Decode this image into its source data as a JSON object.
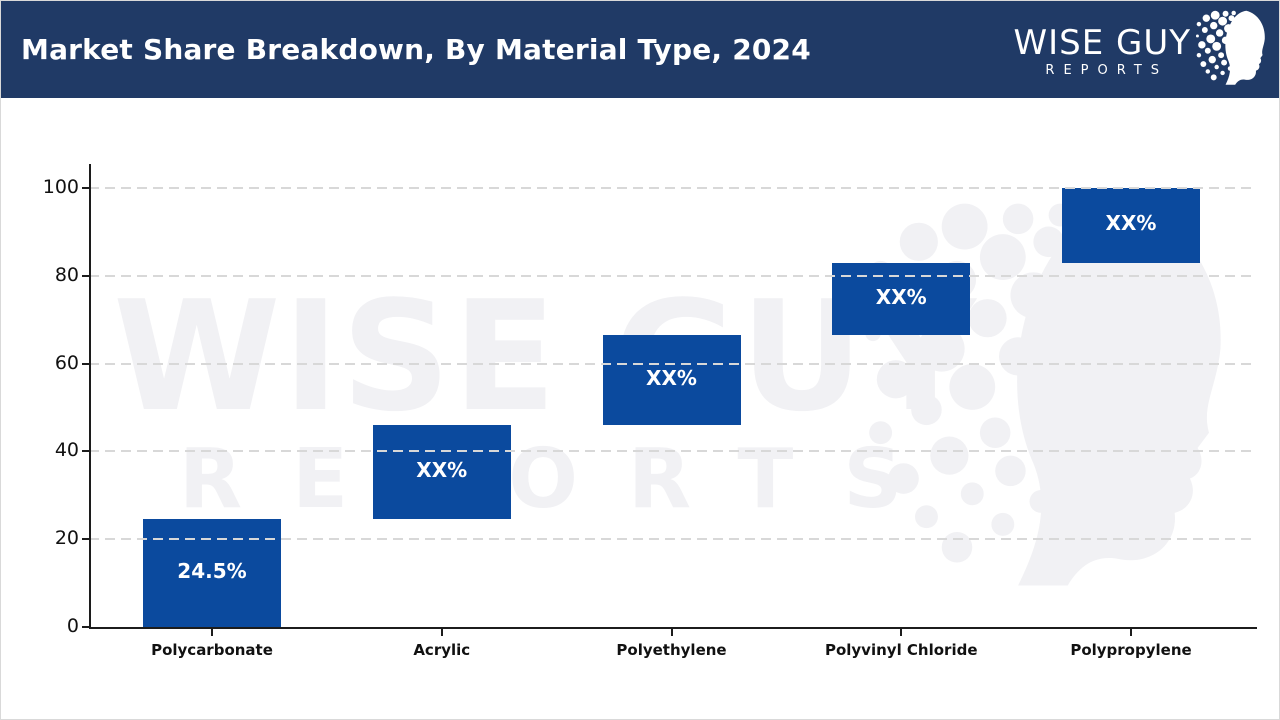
{
  "header": {
    "title": "Market Share Breakdown, By Material Type, 2024",
    "logo": {
      "line1": "WISE GUY",
      "line2": "REPORTS",
      "icon": "dotted-face-profile"
    }
  },
  "watermark": {
    "line1": "WISE GUY",
    "line2": "REPORTS",
    "icon": "dotted-face-profile"
  },
  "colors": {
    "header_bg": "#203a66",
    "bar": "#0b4a9e",
    "bar_label": "#ffffff",
    "gridline": "#d8d8d8",
    "axis": "#1c1c1c",
    "watermark": "#f1f1f4"
  },
  "chart_data": {
    "type": "bar",
    "variant": "waterfall",
    "title": "Market Share Breakdown, By Material Type, 2024",
    "categories": [
      "Polycarbonate",
      "Acrylic",
      "Polyethylene",
      "Polyvinyl Chloride",
      "Polypropylene"
    ],
    "segments": [
      {
        "category": "Polycarbonate",
        "start": 0,
        "end": 24.5,
        "label": "24.5%"
      },
      {
        "category": "Acrylic",
        "start": 24.5,
        "end": 46,
        "label": "XX%"
      },
      {
        "category": "Polyethylene",
        "start": 46,
        "end": 66.5,
        "label": "XX%"
      },
      {
        "category": "Polyvinyl Chloride",
        "start": 66.5,
        "end": 83,
        "label": "XX%"
      },
      {
        "category": "Polypropylene",
        "start": 83,
        "end": 100,
        "label": "XX%"
      }
    ],
    "xlabel": "",
    "ylabel": "",
    "ylim": [
      0,
      100
    ],
    "yticks": [
      0,
      20,
      40,
      60,
      80,
      100
    ],
    "grid": "horizontal-dashed",
    "legend": "none",
    "bar_color": "#0b4a9e",
    "label_color": "#ffffff"
  }
}
